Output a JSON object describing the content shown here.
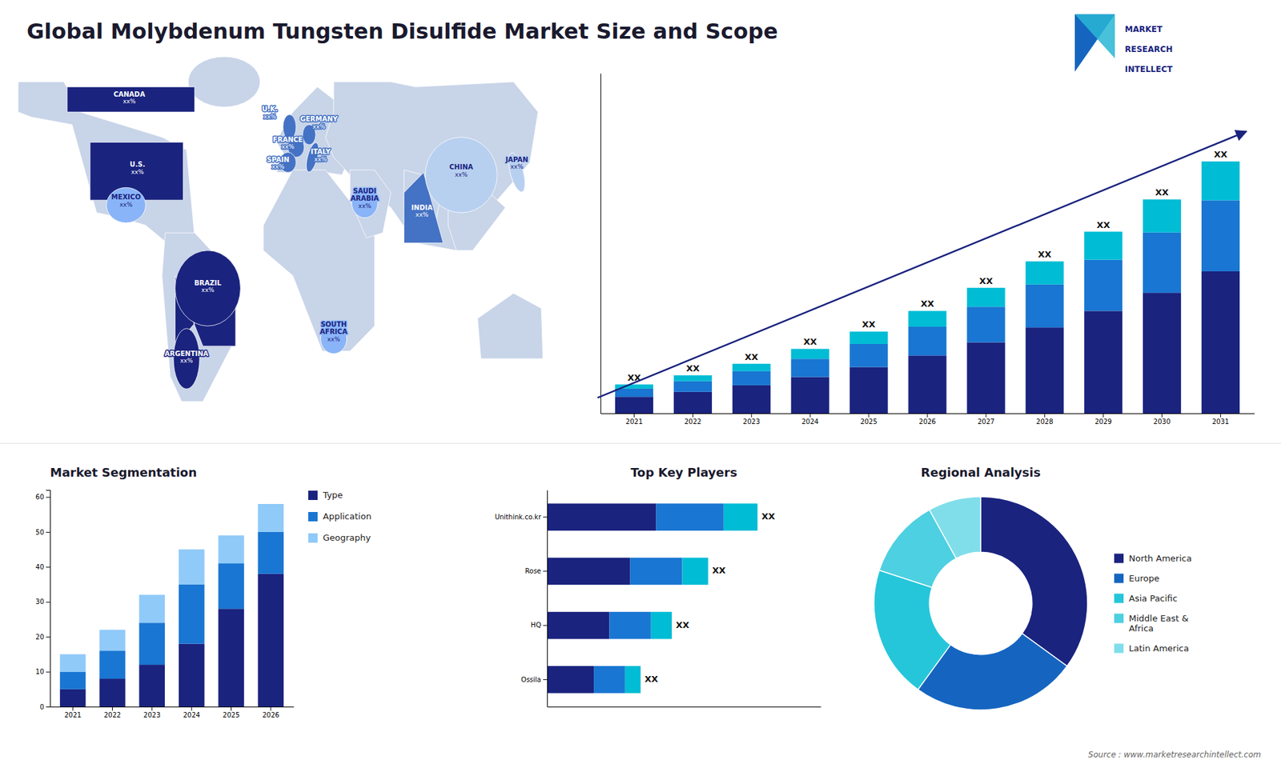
{
  "chart_data": [
    {
      "type": "bar",
      "title": "Global Molybdenum Tungsten Disulfide Market Size and Scope",
      "stacked": true,
      "tick_labels": "x",
      "categories": [
        "2021",
        "2022",
        "2023",
        "2024",
        "2025",
        "2026",
        "2027",
        "2028",
        "2029",
        "2030",
        "2031"
      ],
      "series": [
        {
          "color": "#1a237e",
          "values": [
            1.0,
            1.3,
            1.7,
            2.2,
            2.8,
            3.5,
            4.3,
            5.2,
            6.2,
            7.3,
            8.6
          ]
        },
        {
          "color": "#1976d2",
          "values": [
            0.5,
            0.65,
            0.85,
            1.1,
            1.4,
            1.75,
            2.15,
            2.6,
            3.1,
            3.65,
            4.3
          ]
        },
        {
          "color": "#00bcd4",
          "values": [
            0.25,
            0.35,
            0.45,
            0.6,
            0.75,
            0.95,
            1.15,
            1.4,
            1.7,
            2.0,
            2.35
          ]
        }
      ],
      "ylim": [
        0,
        20.5875
      ],
      "annotations": [
        "XX",
        "XX",
        "XX",
        "XX",
        "XX",
        "XX",
        "XX",
        "XX",
        "XX",
        "XX",
        "XX"
      ]
    },
    {
      "type": "map",
      "categories": [
        "CANADA",
        "U.S.",
        "MEXICO",
        "BRAZIL",
        "ARGENTINA",
        "U.K.",
        "FRANCE",
        "SPAIN",
        "GERMANY",
        "ITALY",
        "SAUDI\nARABIA",
        "SOUTH\nAFRICA",
        "INDIA",
        "CHINA",
        "JAPAN"
      ],
      "colors": [
        "#1a237e",
        "#1a237e",
        "#8ab4f8",
        "#1a237e",
        "#1a237e",
        "#4472c4",
        "#4472c4",
        "#4472c4",
        "#4472c4",
        "#4472c4",
        "#8ab4f8",
        "#8ab4f8",
        "#4472c4",
        "#b8d0f0",
        "#b8d0f0"
      ],
      "color": "#c8d4e8",
      "annotations": [
        "xx%",
        "xx%",
        "xx%",
        "xx%",
        "xx%",
        "xx%",
        "xx%",
        "xx%",
        "xx%",
        "xx%",
        "xx%",
        "xx%",
        "xx%",
        "xx%",
        "xx%"
      ]
    },
    {
      "type": "bar",
      "title": "Market Segmentation",
      "stacked": true,
      "categories": [
        "2021",
        "2022",
        "2023",
        "2024",
        "2025",
        "2026"
      ],
      "series": [
        {
          "name": "Type",
          "color": "#1a237e",
          "values": [
            5,
            8,
            12,
            18,
            28,
            38
          ]
        },
        {
          "name": "Application",
          "color": "#1976d2",
          "values": [
            5,
            8,
            12,
            17,
            13,
            12
          ]
        },
        {
          "name": "Geography",
          "color": "#90caf9",
          "values": [
            5,
            6,
            8,
            10,
            8,
            8
          ]
        }
      ],
      "ylim": [
        0,
        62
      ],
      "yticks": [
        0,
        10,
        20,
        30,
        40,
        50,
        60
      ],
      "legend": "right"
    },
    {
      "type": "bar",
      "orientation": "horizontal",
      "stacked": true,
      "title": "Top Key Players",
      "tick_labels": "y",
      "categories": [
        "Ossila",
        "HQ",
        "Rose",
        "Unithink.co.kr"
      ],
      "series": [
        {
          "color": "#1a237e",
          "values": [
            1.8,
            2.4,
            3.2,
            4.2
          ]
        },
        {
          "color": "#1976d2",
          "values": [
            1.2,
            1.6,
            2.0,
            2.6
          ]
        },
        {
          "color": "#00bcd4",
          "values": [
            0.6,
            0.8,
            1.0,
            1.3
          ]
        }
      ],
      "xlim": [
        0,
        10.53
      ],
      "annotations": [
        "XX",
        "XX",
        "XX",
        "XX"
      ]
    },
    {
      "type": "pie",
      "title": "Regional Analysis",
      "categories": [
        "Latin America",
        "Middle East &\nAfrica",
        "Asia Pacific",
        "Europe",
        "North America"
      ],
      "values": [
        8,
        12,
        20,
        25,
        35
      ],
      "colors": [
        "#80deea",
        "#4dd0e1",
        "#26c6da",
        "#1565c0",
        "#1a237e"
      ],
      "legend": "right"
    },
    {
      "type": "text",
      "annotations": [
        "MARKET",
        "RESEARCH",
        "INTELLECT",
        "Source : www.marketresearchintellect.com"
      ],
      "colors": [
        "#1565c0",
        "#29b6d4"
      ]
    }
  ]
}
